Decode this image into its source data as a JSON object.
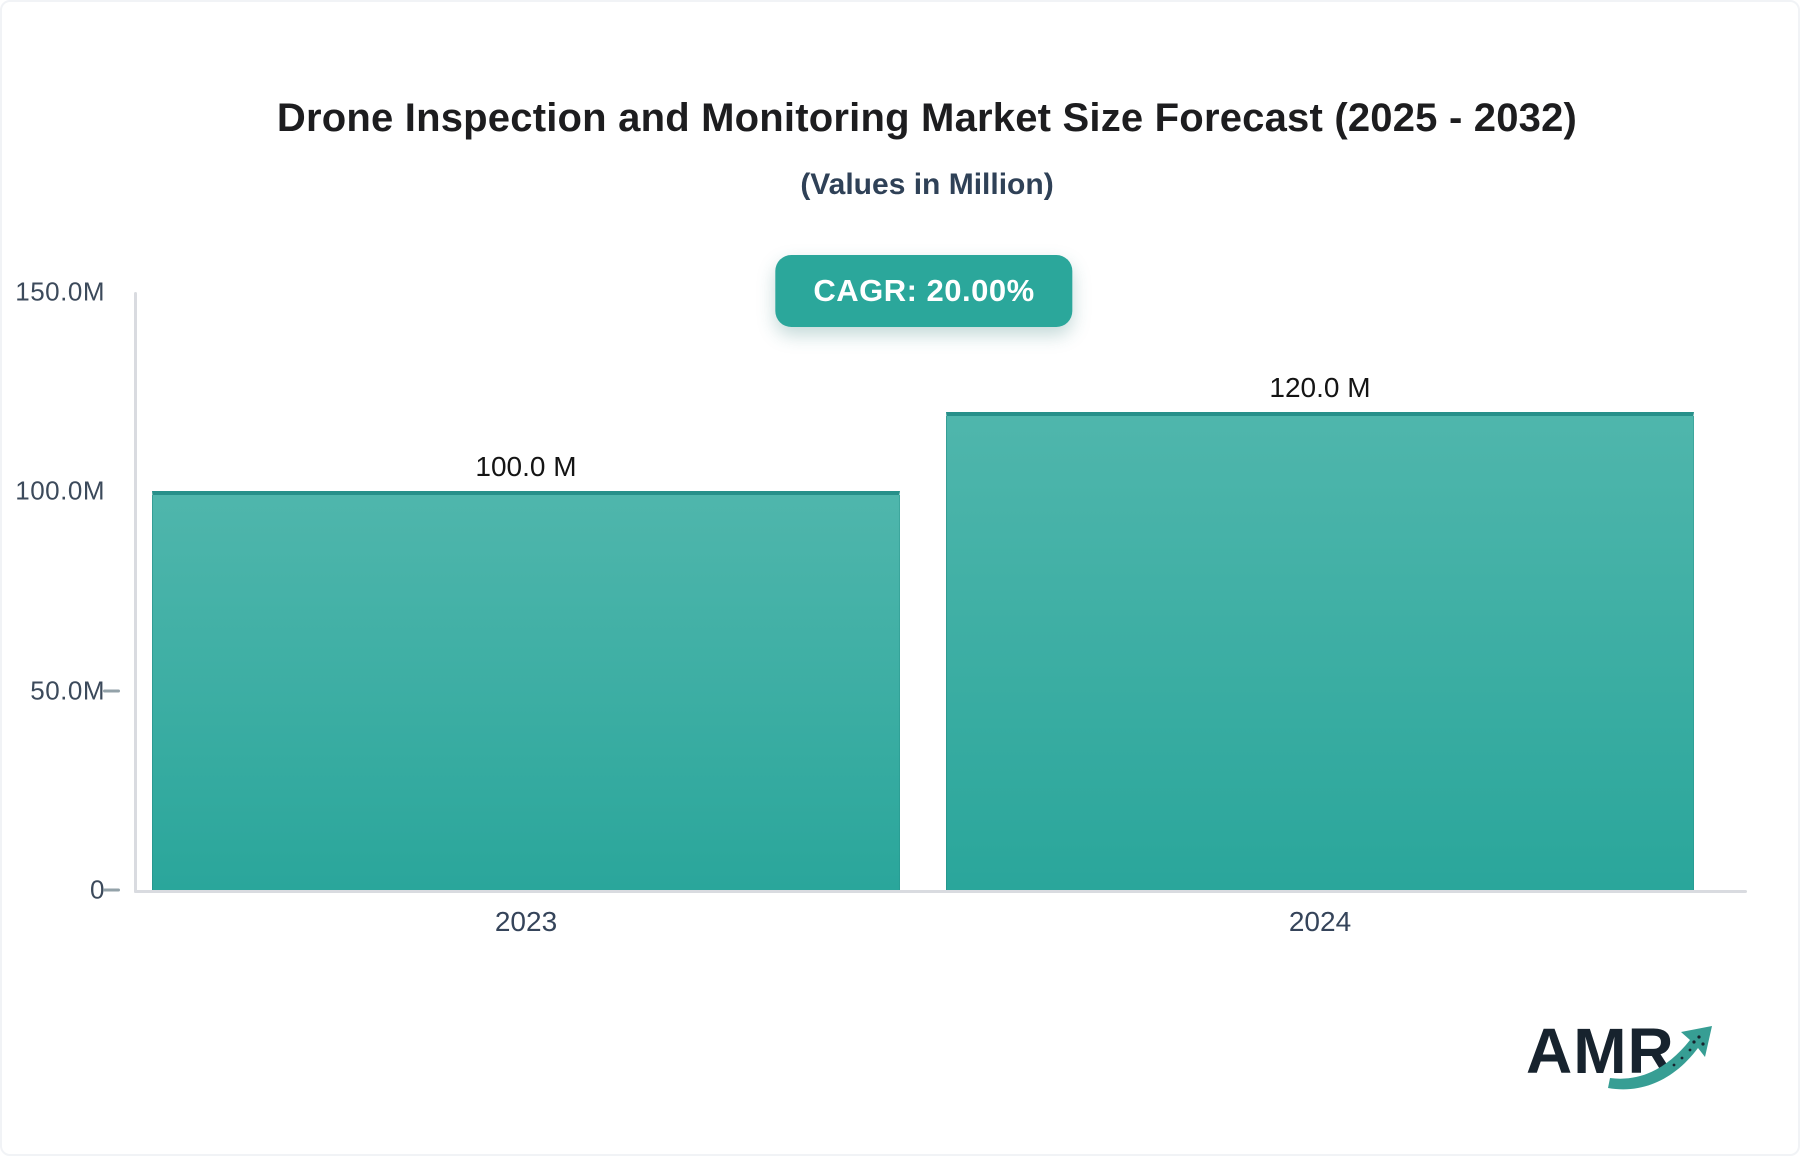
{
  "header": {
    "title": "Drone Inspection and Monitoring Market Size Forecast (2025 - 2032)",
    "subtitle": "(Values in Million)",
    "cagr_badge": "CAGR: 20.00%"
  },
  "chart_data": {
    "type": "bar",
    "title": "Drone Inspection and Monitoring Market Size Forecast (2025 - 2032)",
    "subtitle": "(Values in Million)",
    "categories": [
      "2023",
      "2024"
    ],
    "values": [
      100,
      120
    ],
    "value_labels": [
      "100.0 M",
      "120.0 M"
    ],
    "unit": "Million",
    "cagr": "20.00%",
    "ylim": [
      0,
      150
    ],
    "yticks": [
      {
        "value": 150,
        "label": "150.0M",
        "dash": false
      },
      {
        "value": 100,
        "label": "100.0M",
        "dash": false
      },
      {
        "value": 50,
        "label": "50.0M",
        "dash": true
      },
      {
        "value": 0,
        "label": "0",
        "dash": true
      }
    ],
    "grid": false,
    "legend": false
  },
  "colors": {
    "accent": "#2BA79B",
    "bar_gradient_top": "#4FB6AC",
    "bar_gradient_bottom": "#2AA69B",
    "bar_top_border": "#27908A",
    "axis_line": "#D9DBE0",
    "title_text": "#1D1D1F",
    "subtitle_text": "#2F4157",
    "axis_label_text": "#3C4A5B",
    "logo_navy": "#17232E",
    "logo_teal": "#379E94"
  },
  "logo": {
    "text": "AMR",
    "arrow_icon": "growth-arrow-icon"
  }
}
